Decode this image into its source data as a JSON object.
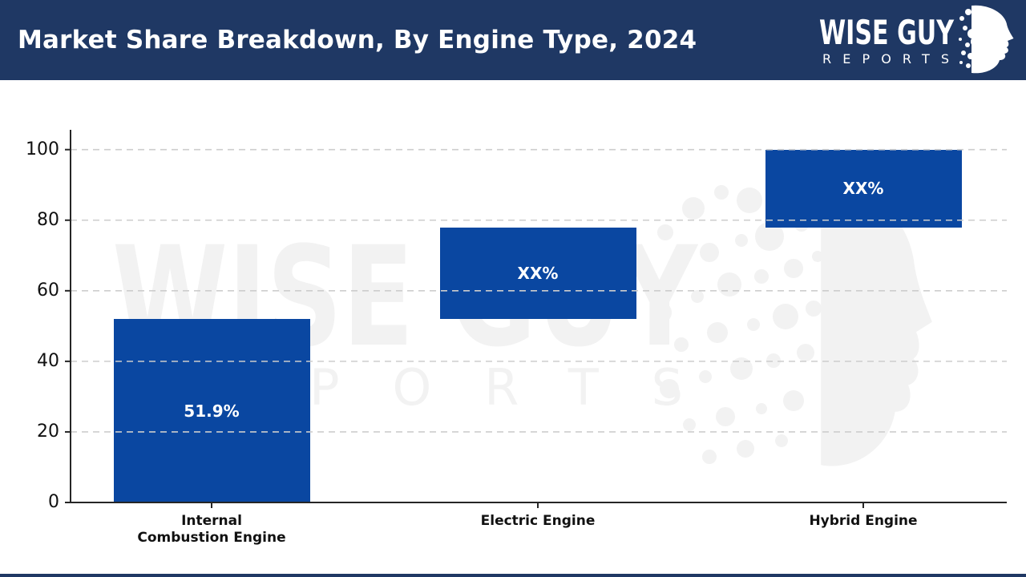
{
  "header": {
    "title": "Market Share Breakdown, By Engine Type, 2024",
    "logo_line1": "WISE GUY",
    "logo_line2": "REPORTS"
  },
  "watermark": {
    "line1": "WISE GUY",
    "line2": "REPORTS"
  },
  "colors": {
    "header_bg": "#1f3864",
    "footer_bg": "#1f3864",
    "bar": "#0a47a1",
    "bar_label": "#ffffff",
    "grid": "#cdcdcd",
    "axis": "#262626",
    "tick_label": "#111111",
    "watermark": "#f2f2f2",
    "title_text": "#ffffff"
  },
  "chart_data": {
    "type": "bar",
    "subtype": "waterfall-range",
    "title": "Market Share Breakdown, By Engine Type, 2024",
    "unit": "%",
    "categories": [
      "Internal Combustion Engine",
      "Electric Engine",
      "Hybrid Engine"
    ],
    "category_label_lines": [
      [
        "Internal",
        "Combustion Engine"
      ],
      [
        "Electric Engine"
      ],
      [
        "Hybrid Engine"
      ]
    ],
    "series": [
      {
        "name": "Market Share",
        "segments": [
          {
            "category": "Internal Combustion Engine",
            "start": 0,
            "end": 51.9,
            "label": "51.9%"
          },
          {
            "category": "Electric Engine",
            "start": 51.9,
            "end": 78,
            "label": "XX%"
          },
          {
            "category": "Hybrid Engine",
            "start": 78,
            "end": 100,
            "label": "XX%"
          }
        ]
      }
    ],
    "ylim": [
      0,
      105
    ],
    "yticks": [
      0,
      20,
      40,
      60,
      80,
      100
    ],
    "xlabel": "",
    "ylabel": "",
    "grid": "horizontal dashed",
    "legend": "none"
  }
}
